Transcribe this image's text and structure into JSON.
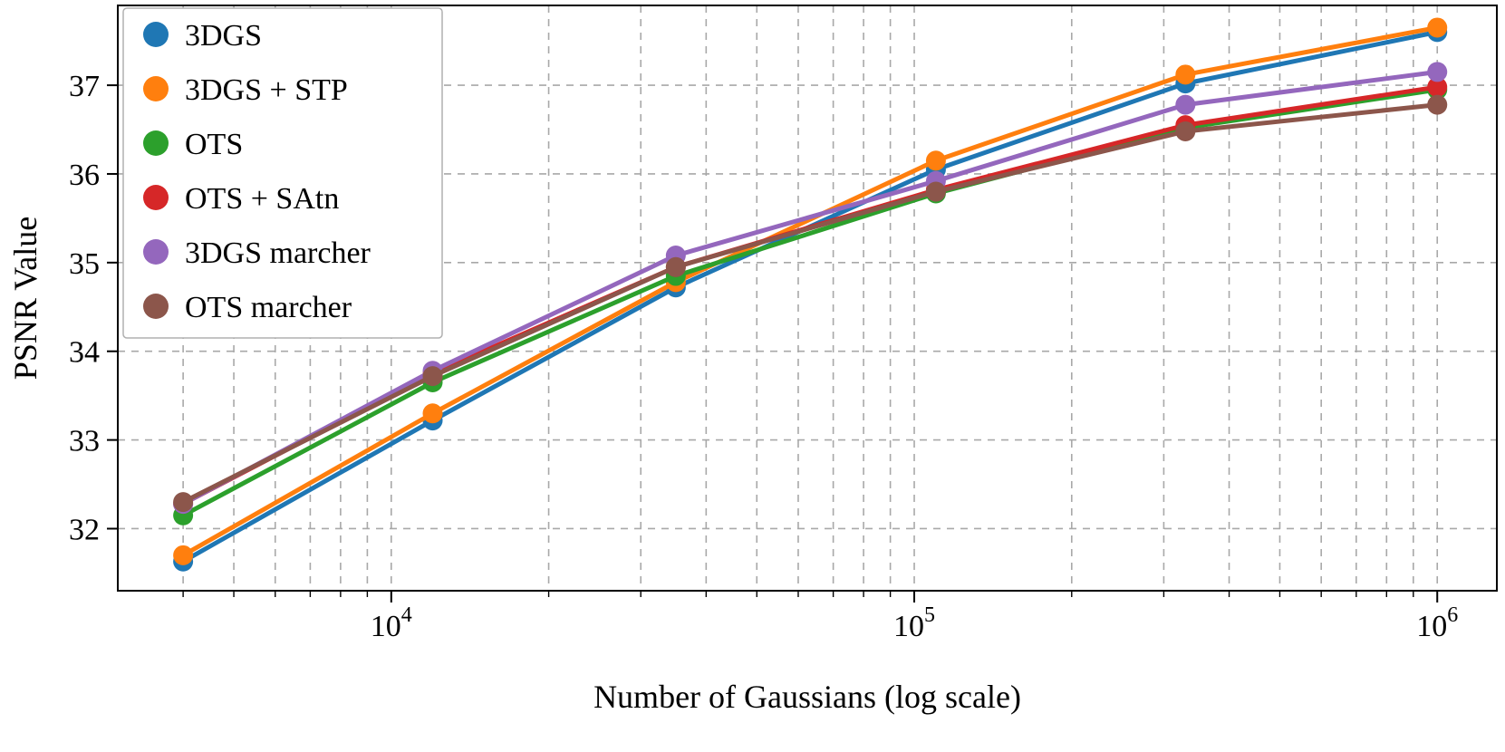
{
  "figure": {
    "background": "#ffffff"
  },
  "chart_data": {
    "type": "line",
    "title": "",
    "xlabel": "Number of Gaussians (log scale)",
    "ylabel": "PSNR Value",
    "xscale": "log",
    "xlim": [
      3000,
      1300000
    ],
    "ylim": [
      31.3,
      37.9
    ],
    "x": [
      4000,
      12000,
      35000,
      110000,
      330000,
      1000000
    ],
    "series": [
      {
        "name": "3DGS",
        "color": "#1f77b4",
        "values": [
          31.63,
          33.22,
          34.72,
          36.05,
          37.02,
          37.6
        ]
      },
      {
        "name": "3DGS + STP",
        "color": "#ff7f0e",
        "values": [
          31.7,
          33.3,
          34.78,
          36.15,
          37.12,
          37.65
        ]
      },
      {
        "name": "OTS",
        "color": "#2ca02c",
        "values": [
          32.15,
          33.65,
          34.85,
          35.78,
          36.52,
          36.95
        ]
      },
      {
        "name": "OTS + SAtn",
        "color": "#d62728",
        "values": [
          32.28,
          33.75,
          34.95,
          35.82,
          36.55,
          36.98
        ]
      },
      {
        "name": "3DGS marcher",
        "color": "#9467bd",
        "values": [
          32.28,
          33.78,
          35.08,
          35.92,
          36.78,
          37.15
        ]
      },
      {
        "name": "OTS marcher",
        "color": "#8c564b",
        "values": [
          32.3,
          33.72,
          34.95,
          35.8,
          36.48,
          36.78
        ]
      }
    ],
    "yticks": [
      32,
      33,
      34,
      35,
      36,
      37
    ],
    "xticks": [
      {
        "value": 10000,
        "base": "10",
        "exp": "4"
      },
      {
        "value": 100000,
        "base": "10",
        "exp": "5"
      },
      {
        "value": 1000000,
        "base": "10",
        "exp": "6"
      }
    ],
    "grid": {
      "which": "both",
      "color": "#a8a8a8",
      "dash": "8 7"
    },
    "legend": {
      "position": "upper left",
      "border_color": "#b0b0b0",
      "background": "#ffffff"
    }
  }
}
